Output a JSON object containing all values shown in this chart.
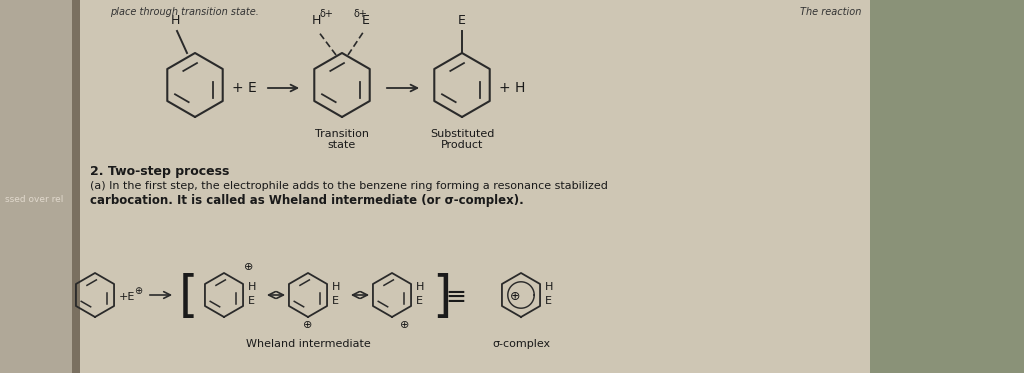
{
  "bg_left_color": "#c0b8aa",
  "bg_main_color": "#cec8b8",
  "bg_right_color": "#8a9080",
  "page_color": "#d0c8b8",
  "left_strip_color": "#b0a898",
  "figsize": [
    10.24,
    3.73
  ],
  "dpi": 100,
  "top_text_left": "place through transition state.",
  "top_text_right": "The reaction",
  "label_transition": "Transition\nstate",
  "label_substituted": "Substituted\nProduct",
  "section_title": "2. Two-step process",
  "body_text_line1": "(a) In the first step, the electrophile adds to the benzene ring forming a resonance stabilized",
  "body_text_line2": "carbocation. It is called as Wheland intermediate (or σ-complex).",
  "wheland_label": "Wheland intermediate",
  "sigma_label": "σ-complex",
  "left_margin_text1": "ssed over rel",
  "text_color": "#1a1a1a",
  "line_color": "#2a2a2a"
}
